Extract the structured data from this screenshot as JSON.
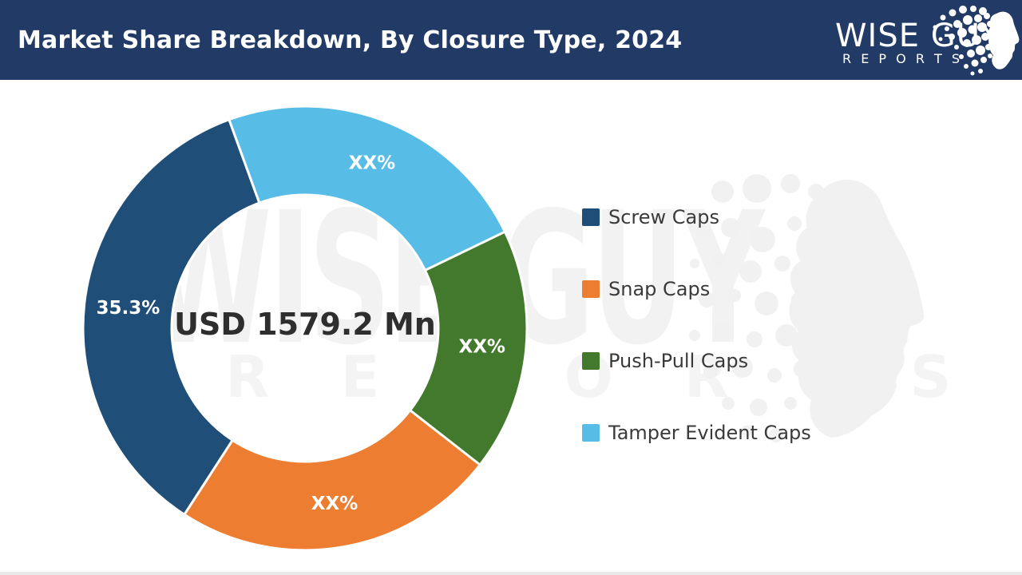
{
  "header": {
    "title": "Market Share Breakdown, By Closure Type, 2024",
    "logo": {
      "line1": "WISE GUY",
      "line2": "R E P O R T S"
    }
  },
  "watermark": {
    "line1": "WISE GUY",
    "line2": "R E P O R T S"
  },
  "chart_data": {
    "type": "pie",
    "donut": true,
    "title": "Market Share Breakdown, By Closure Type, 2024",
    "center_label": "USD 1579.2 Mn",
    "start_angle_deg": 110,
    "direction": "counterclockwise",
    "legend_position": "right",
    "slices": [
      {
        "name": "Screw Caps",
        "value": 35.3,
        "display_label": "35.3%",
        "color": "#1F4E79"
      },
      {
        "name": "Snap Caps",
        "value": 23.6,
        "display_label": "XX%",
        "color": "#ED7D31"
      },
      {
        "name": "Push-Pull Caps",
        "value": 17.7,
        "display_label": "XX%",
        "color": "#42792C"
      },
      {
        "name": "Tamper Evident Caps",
        "value": 23.4,
        "display_label": "XX%",
        "color": "#58BDE6"
      }
    ]
  },
  "colors": {
    "header_bg": "#213A66",
    "header_text": "#FFFFFF",
    "canvas_bg": "#FFFFFF",
    "center_text": "#2E2E2E",
    "legend_text": "#3A3A3A",
    "slice_label_text": "#FFFFFF",
    "slice_gap": "#FFFFFF",
    "watermark": "#F1F1F2",
    "bottom_strip": "#E9E9E9"
  }
}
